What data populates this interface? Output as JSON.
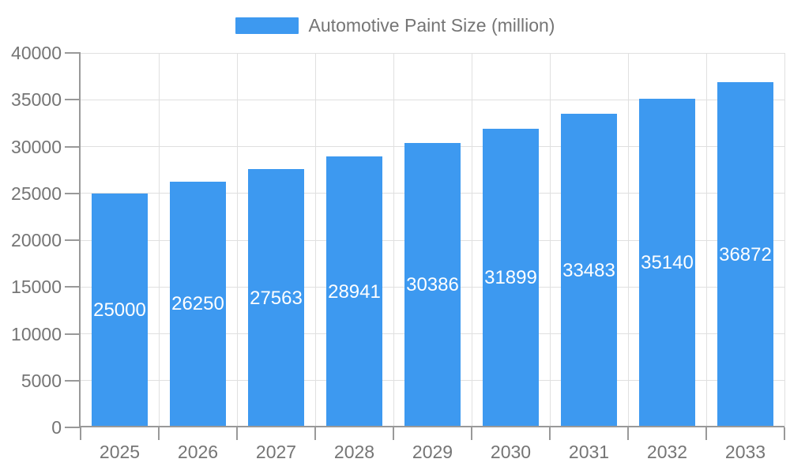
{
  "chart_data": {
    "type": "bar",
    "title": "Automotive Paint Size (million)",
    "legend": [
      "Automotive Paint Size (million)"
    ],
    "legend_position": "top-center",
    "categories": [
      "2025",
      "2026",
      "2027",
      "2028",
      "2029",
      "2030",
      "2031",
      "2032",
      "2033"
    ],
    "series": [
      {
        "name": "Automotive Paint Size (million)",
        "values": [
          25000,
          26250,
          27563,
          28941,
          30386,
          31899,
          33483,
          35140,
          36872
        ]
      }
    ],
    "xlabel": "",
    "ylabel": "",
    "ylim": [
      0,
      40000
    ],
    "yticks": [
      0,
      5000,
      10000,
      15000,
      20000,
      25000,
      30000,
      35000,
      40000
    ],
    "grid": true,
    "value_labels_inside_bars": true,
    "colors": {
      "bar": "#3D99F0",
      "axis": "#999999",
      "grid": "#E0E0E0",
      "tick_label": "#757575",
      "value_label": "#FFFFFF",
      "background": "#FFFFFF"
    }
  }
}
